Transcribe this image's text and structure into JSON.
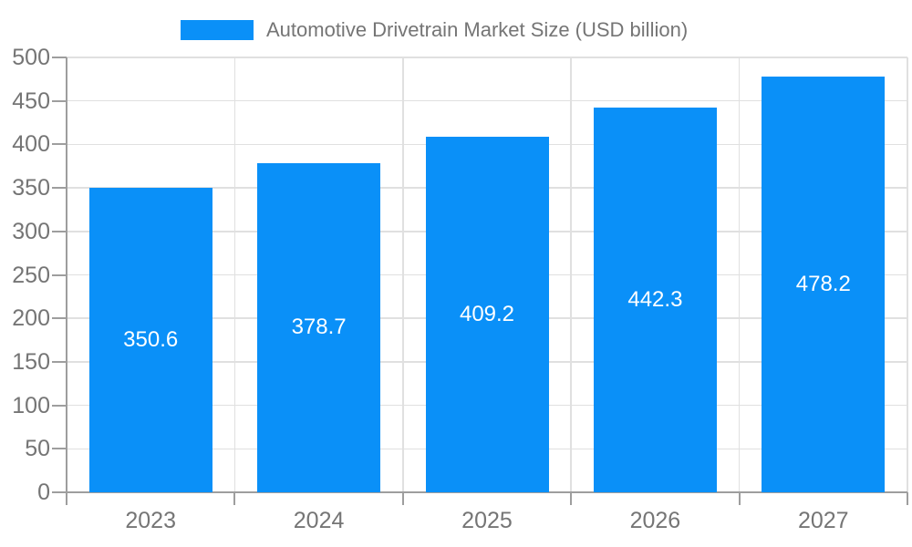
{
  "chart_data": {
    "type": "bar",
    "title": "",
    "categories": [
      "2023",
      "2024",
      "2025",
      "2026",
      "2027"
    ],
    "series": [
      {
        "name": "Automotive Drivetrain Market Size (USD billion)",
        "values": [
          350.6,
          378.7,
          409.2,
          442.3,
          478.2
        ]
      }
    ],
    "value_labels": [
      "350.6",
      "378.7",
      "409.2",
      "442.3",
      "478.2"
    ],
    "xlabel": "",
    "ylabel": "",
    "ylim": [
      0,
      500
    ],
    "ytick_step": 50,
    "ytick_labels": [
      "0",
      "50",
      "100",
      "150",
      "200",
      "250",
      "300",
      "350",
      "400",
      "450",
      "500"
    ],
    "grid": true,
    "legend_position": "top",
    "colors": {
      "bar": "#0a90f8",
      "value_label": "#ffffff",
      "axis_line": "#9e9e9e",
      "grid_line": "#e0e0e0",
      "text": "#757575"
    }
  }
}
